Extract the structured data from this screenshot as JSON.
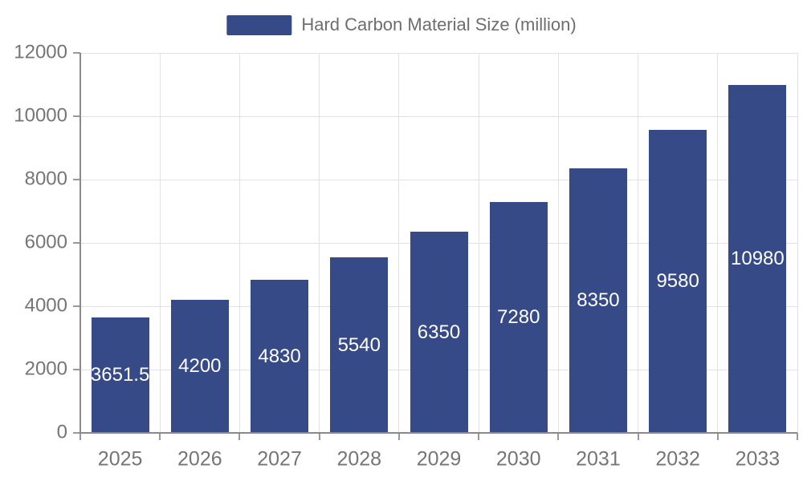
{
  "chart_data": {
    "type": "bar",
    "title": "Hard Carbon Material Size (million)",
    "legend": [
      "Hard Carbon Material Size (million)"
    ],
    "legend_position": "top-center",
    "categories": [
      "2025",
      "2026",
      "2027",
      "2028",
      "2029",
      "2030",
      "2031",
      "2032",
      "2033"
    ],
    "series": [
      {
        "name": "Hard Carbon Material Size (million)",
        "values": [
          3651.5,
          4200,
          4830,
          5540,
          6350,
          7280,
          8350,
          9580,
          10980
        ]
      }
    ],
    "xlabel": "",
    "ylabel": "",
    "ylim": [
      0,
      12000
    ],
    "yticks": [
      0,
      2000,
      4000,
      6000,
      8000,
      10000,
      12000
    ],
    "grid": true,
    "value_label_position": "inside-center",
    "colors": {
      "bar": "#374A88",
      "value_label_text": "#FFFFFF",
      "axis_text": "#757575",
      "legend_text": "#6E6E6E",
      "grid_line": "#E2E2E2",
      "axis_line": "#8A8A8A",
      "tick_line": "#999999",
      "background": "#FFFFFF"
    }
  }
}
